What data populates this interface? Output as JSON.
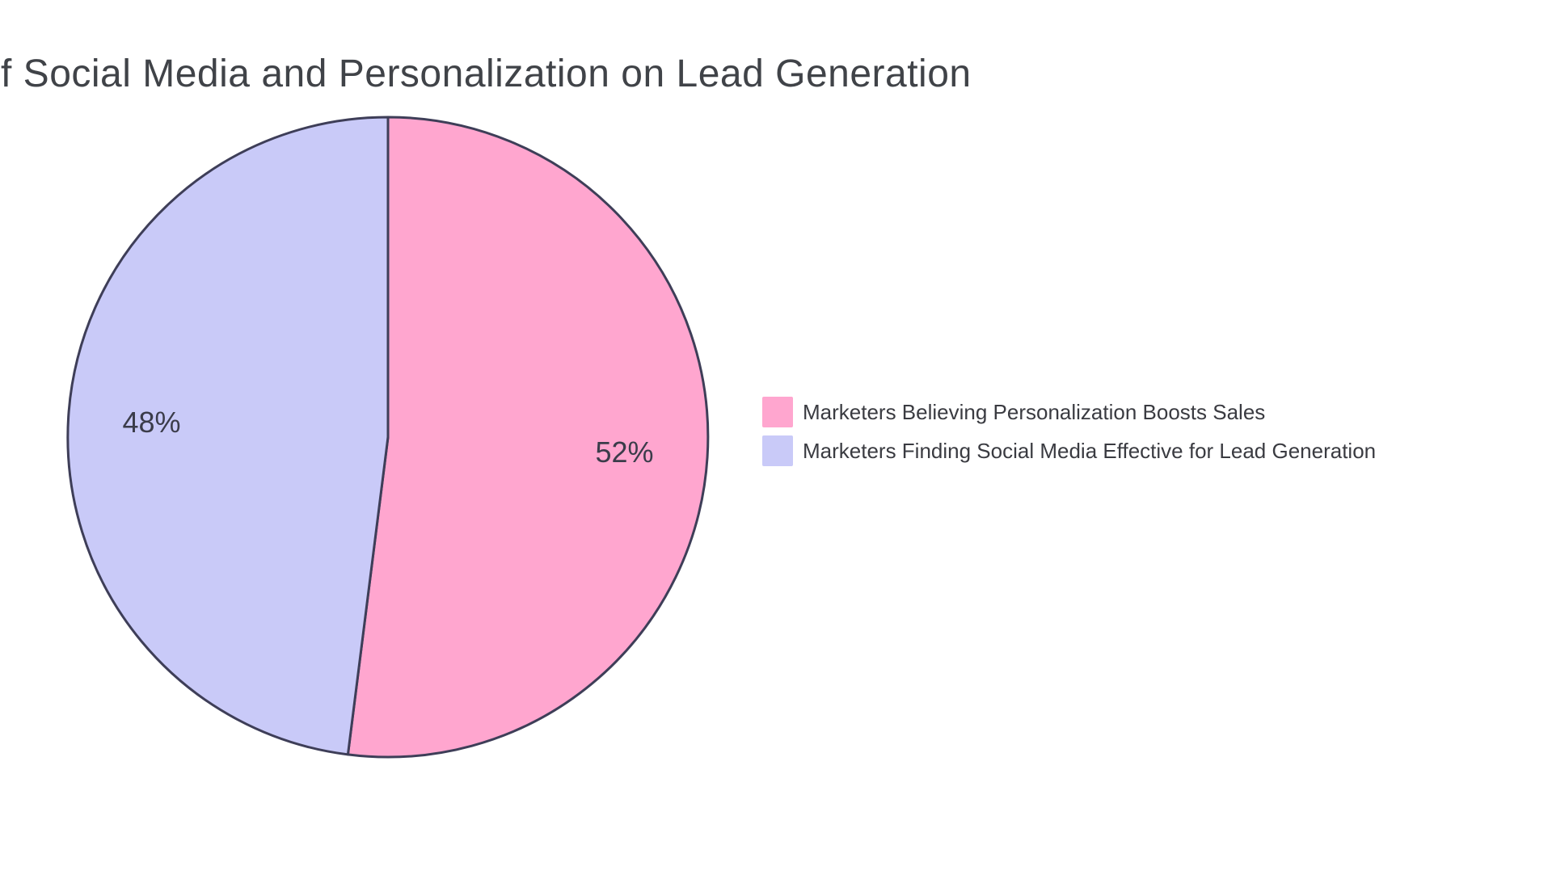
{
  "chart_data": {
    "type": "pie",
    "title": "f Social Media and Personalization on Lead Generation",
    "start_angle": "12-oclock",
    "direction": "clockwise",
    "slices": [
      {
        "label": "Marketers Believing Personalization Boosts Sales",
        "value_pct": 52,
        "percent_label": "52%",
        "color": "#FFA6CF"
      },
      {
        "label": "Marketers Finding Social Media Effective for Lead Generation",
        "value_pct": 48,
        "percent_label": "48%",
        "color": "#C9CAF8"
      }
    ],
    "legend_position": "right",
    "style": {
      "background": "#FFFFFF",
      "outline_color": "#3E3E58",
      "outline_width": 3,
      "title_color": "#404348",
      "percent_label_color": "#3B3C4A",
      "percent_label_font_size": 36,
      "legend_text_color": "#3A3B41"
    }
  }
}
